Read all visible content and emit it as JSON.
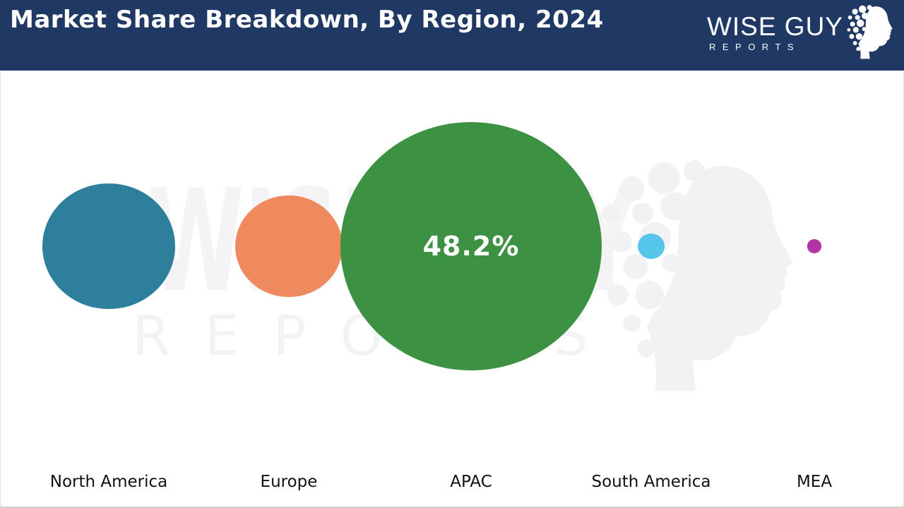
{
  "header": {
    "title": "Market Share Breakdown, By Region, 2024",
    "logo": {
      "wordmark": "WISE GUY",
      "subtext": "REPORTS"
    },
    "bg_color": "#1f3864"
  },
  "watermark": {
    "line1": "WISE GUY",
    "line2": "REPORTS"
  },
  "chart_data": {
    "type": "bubble",
    "title": "Market Share Breakdown, By Region, 2024",
    "unit": "percent market share",
    "categories": [
      "North America",
      "Europe",
      "APAC",
      "South America",
      "MEA"
    ],
    "values": [
      24.5,
      19.8,
      48.2,
      5.0,
      2.7
    ],
    "colors": [
      "#2e7f9b",
      "#ef8a5e",
      "#3c9142",
      "#55c5ea",
      "#b136a4"
    ],
    "data_labels": [
      null,
      null,
      "48.2%",
      null,
      null
    ],
    "legend": "none",
    "axes": "none",
    "layout_hint": "five circles in a row, size proportional to share, category names beneath each circle",
    "label_text_color": "#111111",
    "data_label_color": "#ffffff",
    "watermark_color": "#f4f4f7",
    "border_color": "#cfcfcf"
  }
}
